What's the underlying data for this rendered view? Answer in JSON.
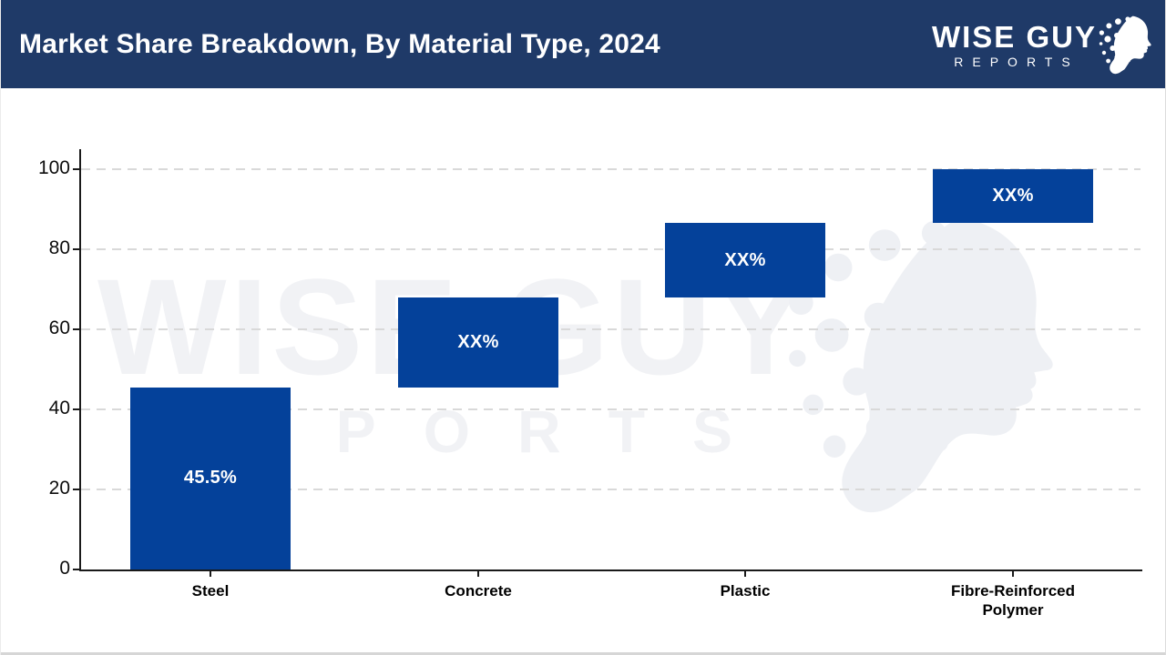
{
  "header": {
    "title": "Market Share Breakdown, By Material Type, 2024",
    "logo": {
      "brand_line1": "WISE GUY",
      "brand_line2": "REPORTS",
      "icon": "dotted-head-profile-icon"
    }
  },
  "watermark": {
    "line1": "WISE GUY",
    "line2": "REPORTS",
    "icon": "dotted-head-profile-icon"
  },
  "colors": {
    "header_bg": "#1f3a68",
    "bar": "#04419a",
    "bar_label": "#ffffff",
    "grid": "#d9d9d9",
    "axis": "#1a1a1a",
    "watermark": "#f1f2f5",
    "watermark_head": "#eef0f4"
  },
  "chart_data": {
    "type": "bar",
    "subtype": "waterfall (cumulative stacked market share)",
    "title": "Market Share Breakdown, By Material Type, 2024",
    "categories": [
      "Steel",
      "Concrete",
      "Plastic",
      "Fibre-Reinforced Polymer"
    ],
    "segments": [
      {
        "category": "Steel",
        "start": 0,
        "end": 45.5,
        "displayed_label": "45.5%"
      },
      {
        "category": "Concrete",
        "start": 45.5,
        "end": 68.0,
        "displayed_label": "XX%"
      },
      {
        "category": "Plastic",
        "start": 68.0,
        "end": 86.5,
        "displayed_label": "XX%"
      },
      {
        "category": "Fibre-Reinforced Polymer",
        "start": 86.5,
        "end": 100.0,
        "displayed_label": "XX%"
      }
    ],
    "xlabel": "",
    "ylabel": "",
    "ylim": [
      0,
      100
    ],
    "yticks": [
      0,
      20,
      40,
      60,
      80,
      100
    ],
    "grid": "horizontal dashed",
    "legend": "none"
  }
}
